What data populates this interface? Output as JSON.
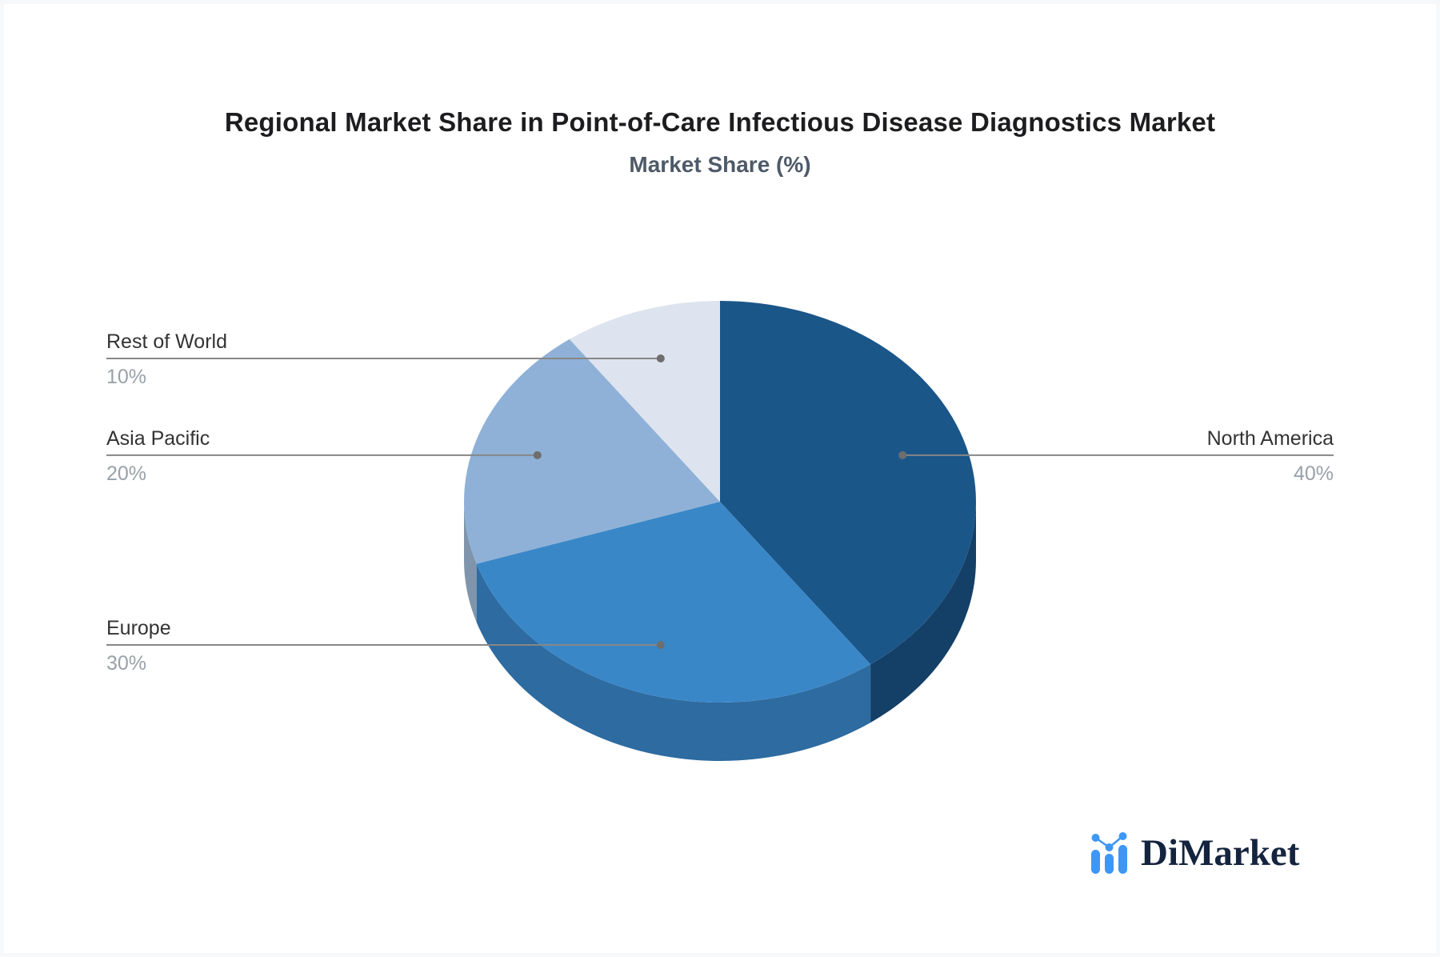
{
  "header": {
    "title": "Regional Market Share in Point-of-Care Infectious Disease Diagnostics Market",
    "subtitle": "Market Share (%)"
  },
  "chart_data": {
    "type": "pie",
    "style": "3d",
    "title": "Regional Market Share in Point-of-Care Infectious Disease Diagnostics Market",
    "subtitle": "Market Share (%)",
    "unit": "%",
    "direction": "clockwise",
    "start_angle_deg": 0,
    "categories": [
      "North America",
      "Europe",
      "Asia Pacific",
      "Rest of World"
    ],
    "values": [
      40,
      30,
      20,
      10
    ],
    "slices": [
      {
        "label": "North America",
        "value": 40,
        "pct_label": "40%",
        "color": "#1b5689",
        "side_color": "#143f66"
      },
      {
        "label": "Europe",
        "value": 30,
        "pct_label": "30%",
        "color": "#3a87c8",
        "side_color": "#2d6ba0"
      },
      {
        "label": "Asia Pacific",
        "value": 20,
        "pct_label": "20%",
        "color": "#8fb1d7",
        "side_color": "#8095ab"
      },
      {
        "label": "Rest of World",
        "value": 10,
        "pct_label": "10%",
        "color": "#dde4ef",
        "side_color": "#c5cedd"
      }
    ],
    "leader_line_color": "#878787",
    "leader_dot_color": "#6e6e6e",
    "label_text_color": "#333333",
    "pct_text_color": "#99a1a9",
    "legend_position": "callout-labels",
    "grid": false
  },
  "branding": {
    "logo_text": "DiMarket",
    "logo_text_color": "#15243e",
    "logo_icon_color": "#3e97f5",
    "logo_icon": "bar-line-chart-icon"
  }
}
